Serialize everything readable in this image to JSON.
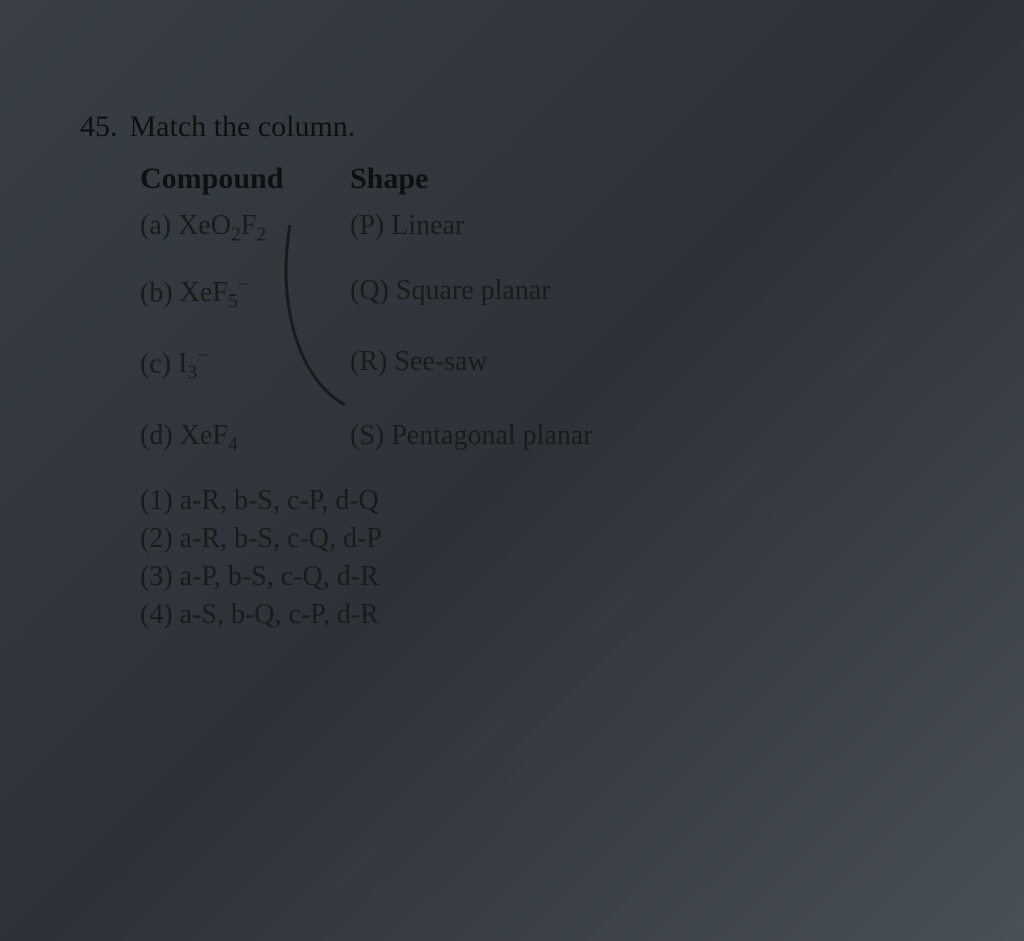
{
  "question": {
    "number": "45.",
    "stem": "Match the column."
  },
  "headers": {
    "left": "Compound",
    "right": "Shape"
  },
  "pairs": [
    {
      "left_label": "(a)",
      "left_html": "XeO<sub>2</sub>F<sub>2</sub>",
      "right_label": "(P)",
      "right_text": "Linear"
    },
    {
      "left_label": "(b)",
      "left_html": "XeF<sub>5</sub><sup>−</sup>",
      "right_label": "(Q)",
      "right_text": "Square planar"
    },
    {
      "left_label": "(c)",
      "left_html": "I<sub>3</sub><sup>−</sup>",
      "right_label": "(R)",
      "right_text": "See-saw"
    },
    {
      "left_label": "(d)",
      "left_html": "XeF<sub>4</sub>",
      "right_label": "(S)",
      "right_text": "Pentagonal planar"
    }
  ],
  "options": [
    {
      "num": "(1)",
      "text": "a-R, b-S, c-P, d-Q"
    },
    {
      "num": "(2)",
      "text": "a-R, b-S, c-Q, d-P"
    },
    {
      "num": "(3)",
      "text": "a-P, b-S, c-Q, d-R"
    },
    {
      "num": "(4)",
      "text": "a-S, b-Q, c-P, d-R"
    }
  ],
  "colors": {
    "text": "#1a1a1a",
    "background_dark": "#2d3238",
    "curve_stroke": "#1a1a1a"
  }
}
